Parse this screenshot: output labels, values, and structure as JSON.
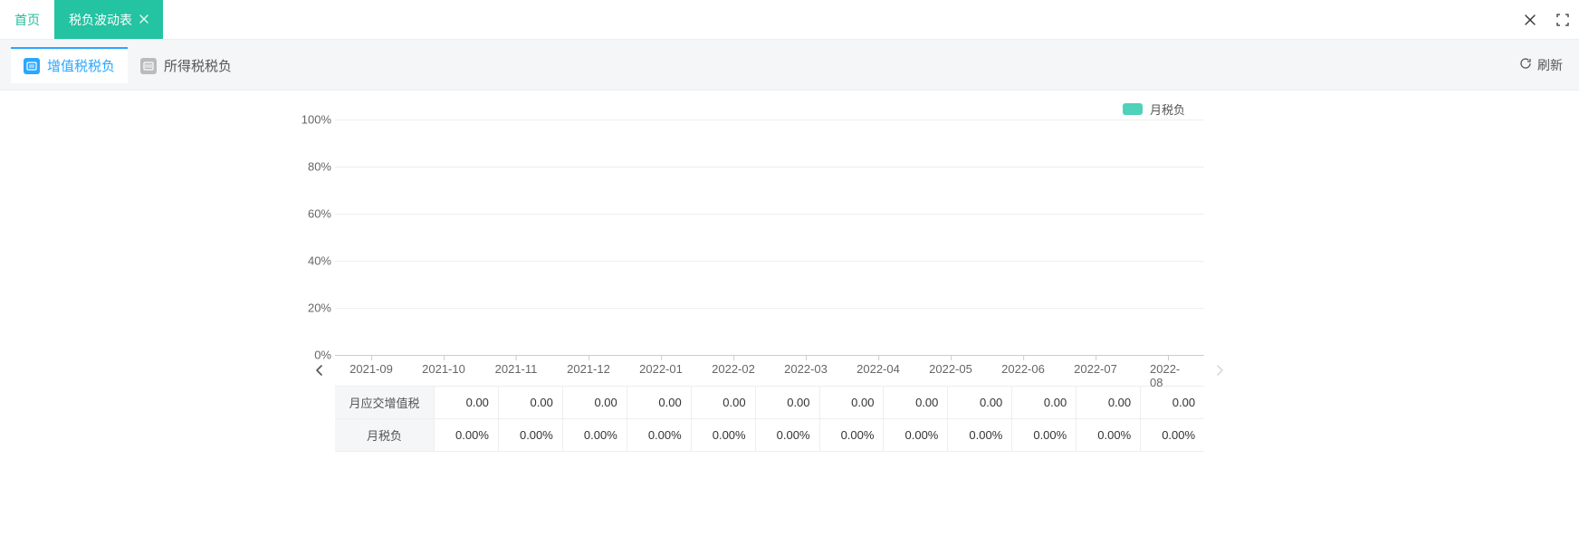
{
  "colors": {
    "accent_green": "#24c3a2",
    "accent_blue": "#2aa7ff",
    "grid": "#eeeeee",
    "axis": "#cccccc",
    "text": "#555555",
    "legend_swatch": "#4fd1ba"
  },
  "topTabs": {
    "home": "首页",
    "active": {
      "label": "税负波动表"
    }
  },
  "subTabs": {
    "items": [
      {
        "label": "增值税税负",
        "active": true
      },
      {
        "label": "所得税税负",
        "active": false
      }
    ]
  },
  "refresh_label": "刷新",
  "chart": {
    "type": "line",
    "legend": "月税负",
    "ylim": [
      0,
      100
    ],
    "yticks": [
      "0%",
      "20%",
      "40%",
      "60%",
      "80%",
      "100%"
    ],
    "xlabels": [
      "2021-09",
      "2021-10",
      "2021-11",
      "2021-12",
      "2022-01",
      "2022-02",
      "2022-03",
      "2022-04",
      "2022-05",
      "2022-06",
      "2022-07",
      "2022-08"
    ],
    "series": [
      {
        "name": "月税负",
        "color": "#4fd1ba",
        "values": [
          0,
          0,
          0,
          0,
          0,
          0,
          0,
          0,
          0,
          0,
          0,
          0
        ]
      }
    ],
    "title_fontsize": 13,
    "label_fontsize": 13,
    "background_color": "#ffffff",
    "grid_color": "#eeeeee"
  },
  "table": {
    "row_headers": [
      "月应交增值税",
      "月税负"
    ],
    "rows": [
      [
        "0.00",
        "0.00",
        "0.00",
        "0.00",
        "0.00",
        "0.00",
        "0.00",
        "0.00",
        "0.00",
        "0.00",
        "0.00",
        "0.00"
      ],
      [
        "0.00%",
        "0.00%",
        "0.00%",
        "0.00%",
        "0.00%",
        "0.00%",
        "0.00%",
        "0.00%",
        "0.00%",
        "0.00%",
        "0.00%",
        "0.00%"
      ]
    ]
  }
}
